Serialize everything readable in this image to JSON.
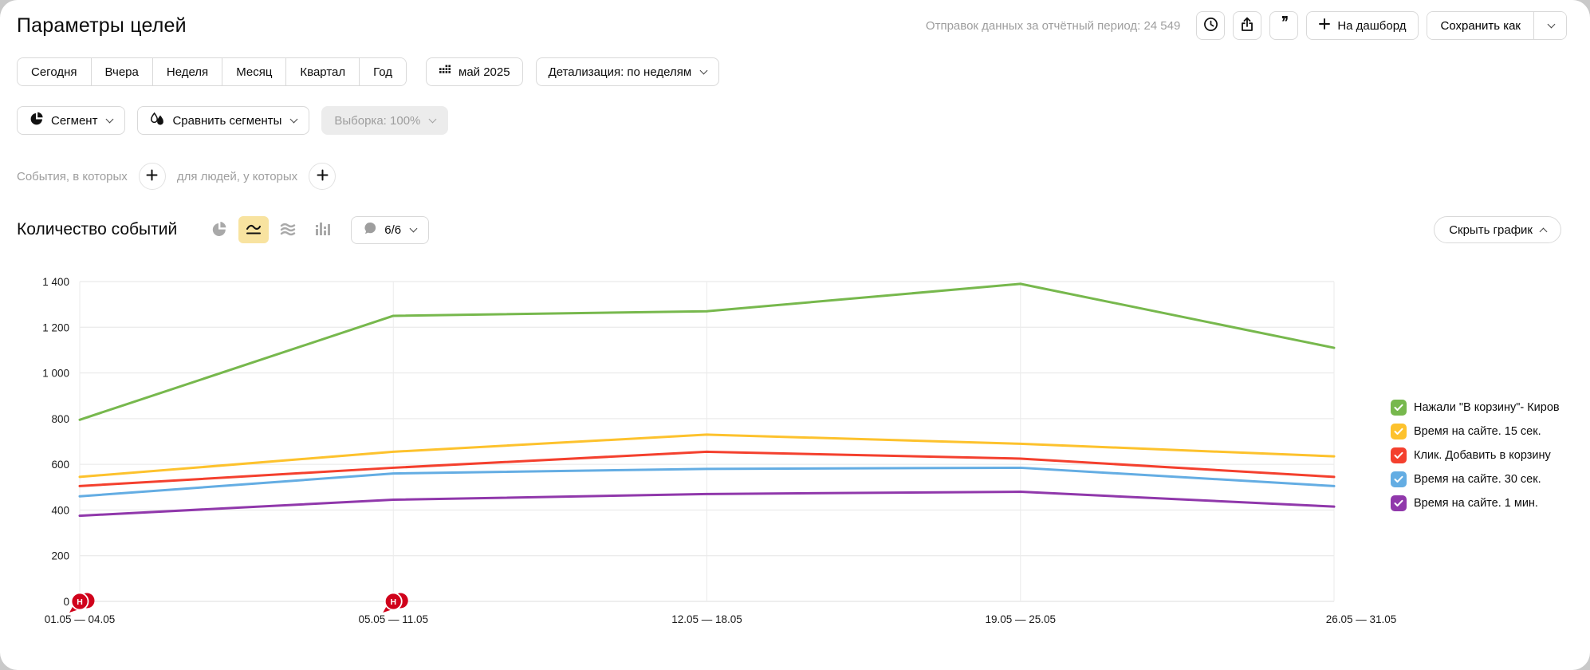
{
  "header": {
    "title": "Параметры целей",
    "submissions_note": "Отправок данных за отчётный период: 24 549",
    "dashboard_label": "На дашборд",
    "save_label": "Сохранить как"
  },
  "toolbar": {
    "period_tabs": [
      "Сегодня",
      "Вчера",
      "Неделя",
      "Месяц",
      "Квартал",
      "Год"
    ],
    "calendar_label": "май 2025",
    "detail_label": "Детализация: по неделям"
  },
  "segments": {
    "segment_label": "Сегмент",
    "compare_label": "Сравнить сегменты",
    "sampling_label": "Выборка: 100%"
  },
  "filters": {
    "events_label": "События, в которых",
    "people_label": "для людей, у которых"
  },
  "chart_header": {
    "title": "Количество событий",
    "goals_count": "6/6",
    "hide_chart_label": "Скрыть график"
  },
  "icons": {
    "history": "clock",
    "export": "arrow-up-from-tray",
    "annotations": "double-comma",
    "calendar": "dot-grid",
    "segment": "pie",
    "compare_segments": "two-drops",
    "chart_types": [
      "pie",
      "line",
      "stacked-area",
      "columns"
    ],
    "goals": "speech-bubble",
    "legend_check": "checkmark"
  },
  "chart_data": {
    "type": "line",
    "title": "Количество событий",
    "categories": [
      "01.05 — 04.05",
      "05.05 — 11.05",
      "12.05 — 18.05",
      "19.05 — 25.05",
      "26.05 — 31.05"
    ],
    "series": [
      {
        "name": "Нажали \"В корзину\"- Киров",
        "color": "#77b84d",
        "values": [
          795,
          1250,
          1270,
          1390,
          1110
        ]
      },
      {
        "name": "Время на сайте. 15 сек.",
        "color": "#fdc22d",
        "values": [
          545,
          655,
          730,
          690,
          635
        ]
      },
      {
        "name": "Клик. Добавить в корзину",
        "color": "#f4402e",
        "values": [
          505,
          585,
          655,
          625,
          545
        ]
      },
      {
        "name": "Время на сайте. 30 сек.",
        "color": "#64ade3",
        "values": [
          460,
          560,
          580,
          585,
          505
        ]
      },
      {
        "name": "Время на сайте. 1 мин.",
        "color": "#9038ab",
        "values": [
          375,
          445,
          470,
          480,
          415
        ]
      }
    ],
    "ylim": [
      0,
      1400
    ],
    "ytick_labels": [
      "0",
      "200",
      "400",
      "600",
      "800",
      "1 000",
      "1 200",
      "1 400"
    ],
    "grid": true,
    "legend_position": "right",
    "annotation_color": "#d0021b",
    "annotations": [
      {
        "category_index": 0,
        "label": "Н"
      },
      {
        "category_index": 1,
        "label": "Н"
      }
    ]
  }
}
